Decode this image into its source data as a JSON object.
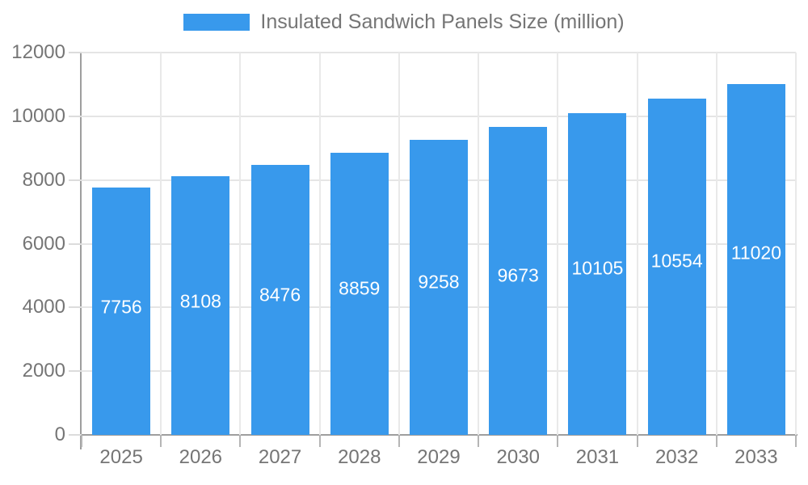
{
  "legend": {
    "label": "Insulated Sandwich Panels Size (million)",
    "swatch_color": "#3899ec"
  },
  "chart_data": {
    "type": "bar",
    "title": "Insulated Sandwich Panels Size (million)",
    "series_name": "Insulated Sandwich Panels Size (million)",
    "categories": [
      "2025",
      "2026",
      "2027",
      "2028",
      "2029",
      "2030",
      "2031",
      "2032",
      "2033"
    ],
    "values": [
      7756,
      8108,
      8476,
      8859,
      9258,
      9673,
      10105,
      10554,
      11020
    ],
    "xlabel": "",
    "ylabel": "",
    "ylim": [
      0,
      12000
    ],
    "ytick_interval": 2000,
    "yticks": [
      0,
      2000,
      4000,
      6000,
      8000,
      10000,
      12000
    ],
    "grid": true,
    "legend_position": "top-center",
    "bar_color": "#3899ec",
    "value_label_color": "#ffffff",
    "axis_text_color": "#757575"
  }
}
